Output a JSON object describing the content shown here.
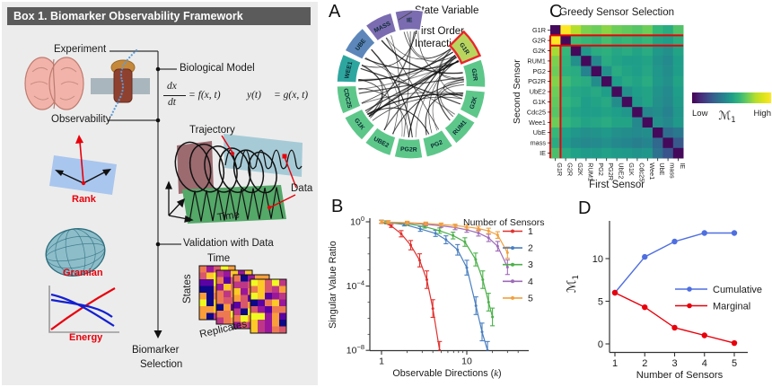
{
  "figure": {
    "background": "#ffffff",
    "text_color": "#1a1a1a",
    "accent_red": "#e8000b"
  },
  "left_box": {
    "title": "Box 1. Biomarker Observability Framework",
    "header_bg": "#5b5b5b",
    "box_bg": "#ececec",
    "labels": {
      "experiment": "Experiment",
      "biological_model": "Biological Model",
      "observability": "Observability",
      "rank": "Rank",
      "gramian": "Gramian",
      "energy": "Energy",
      "trajectory": "Trajectory",
      "data": "Data",
      "time_trajectory": "Time",
      "validation": "Validation with Data",
      "time_validation": "Time",
      "states": "States",
      "replicates": "Replicates",
      "biomarker_line1": "Biomarker",
      "biomarker_line2": "Selection"
    },
    "equations": {
      "numerator": "dx",
      "denominator": "dt",
      "ode_rhs": "= f(x, t)",
      "output": "y(t)",
      "output_rhs": "= g(x, t)"
    }
  },
  "chart_data": [
    {
      "id": "A",
      "type": "chord",
      "panel_label": "A",
      "annotation_lines": [
        "State Variable",
        "First Order",
        "Interactions"
      ],
      "highlight_color": "#e8272c",
      "segments": [
        {
          "name": "G1R",
          "color": "#b9d55e",
          "highlighted": true
        },
        {
          "name": "G2R",
          "color": "#5dc78a"
        },
        {
          "name": "G2K",
          "color": "#5dc78a"
        },
        {
          "name": "RUM1",
          "color": "#5dc78a"
        },
        {
          "name": "PG2",
          "color": "#5dc78a"
        },
        {
          "name": "PG2R",
          "color": "#5dc78a"
        },
        {
          "name": "UBE2",
          "color": "#5dc78a"
        },
        {
          "name": "G1K",
          "color": "#5dc78a"
        },
        {
          "name": "CDC25",
          "color": "#5dc78a"
        },
        {
          "name": "WEE1",
          "color": "#2ea6a0"
        },
        {
          "name": "UBE",
          "color": "#5d87bb"
        },
        {
          "name": "MASS",
          "color": "#7b6cb1"
        },
        {
          "name": "IE",
          "color": "#7b6cb1"
        }
      ]
    },
    {
      "id": "B",
      "type": "line",
      "panel_label": "B",
      "xlabel": "Observable Directions (k)",
      "ylabel": "Singular Value Ratio",
      "xscale": "log",
      "yscale": "log",
      "xlim": [
        1,
        50
      ],
      "ylim": [
        1e-08,
        1
      ],
      "xticks": [
        1,
        10
      ],
      "ytick_exponents": [
        0,
        -4,
        -8
      ],
      "legend_title": "Number of Sensors",
      "series": [
        {
          "name": "1",
          "color": "#e0312e",
          "x": [
            1,
            1.3,
            1.7,
            2.2,
            2.8,
            3.4,
            4,
            4.8
          ],
          "y": [
            1,
            0.55,
            0.18,
            0.035,
            0.004,
            0.00025,
            4e-06,
            1e-08
          ]
        },
        {
          "name": "2",
          "color": "#4a7fc1",
          "x": [
            1,
            1.15,
            1.85,
            2.85,
            4.3,
            5.7,
            7.8,
            10,
            12.8,
            15.1,
            17.5
          ],
          "y": [
            1,
            0.92,
            0.68,
            0.36,
            0.19,
            0.076,
            0.018,
            0.0014,
            6e-06,
            1.4e-07,
            1e-08
          ]
        },
        {
          "name": "3",
          "color": "#4cb04a",
          "x": [
            1,
            1.15,
            2,
            3.2,
            4.8,
            6.9,
            9.5,
            12.7,
            15.4,
            18,
            20
          ],
          "y": [
            1,
            0.93,
            0.75,
            0.5,
            0.28,
            0.14,
            0.055,
            0.0045,
            0.00025,
            1e-05,
            1.2e-06
          ]
        },
        {
          "name": "4",
          "color": "#9e6ab8",
          "x": [
            1,
            1.2,
            2,
            3.3,
            5,
            7.3,
            10,
            13.7,
            18,
            23,
            30
          ],
          "y": [
            1,
            0.94,
            0.84,
            0.7,
            0.56,
            0.44,
            0.32,
            0.2,
            0.1,
            0.03,
            0.0015
          ]
        },
        {
          "name": "5",
          "color": "#f2a03d",
          "x": [
            1,
            1.2,
            2,
            3.3,
            5,
            7.3,
            10,
            13.7,
            18,
            23,
            30
          ],
          "y": [
            1,
            0.95,
            0.88,
            0.78,
            0.68,
            0.58,
            0.48,
            0.38,
            0.27,
            0.15,
            0.012
          ]
        }
      ]
    },
    {
      "id": "C",
      "type": "heatmap",
      "panel_label": "C",
      "title": "Greedy Sensor Selection",
      "xlabel": "First Sensor",
      "ylabel": "Second Sensor",
      "labels": [
        "G1R",
        "G2R",
        "G2K",
        "RUM1",
        "PG2",
        "PG2R",
        "UbE2",
        "G1K",
        "Cdc25",
        "Wee1",
        "UbE",
        "mass",
        "IE"
      ],
      "matrix": [
        [
          0.02,
          1.0,
          0.8,
          0.72,
          0.7,
          0.74,
          0.7,
          0.68,
          0.66,
          0.7,
          0.6,
          0.55,
          0.65
        ],
        [
          1.0,
          0.02,
          0.62,
          0.6,
          0.58,
          0.63,
          0.58,
          0.6,
          0.57,
          0.6,
          0.52,
          0.5,
          0.56
        ],
        [
          0.78,
          0.6,
          0.02,
          0.48,
          0.55,
          0.57,
          0.53,
          0.55,
          0.52,
          0.55,
          0.48,
          0.45,
          0.52
        ],
        [
          0.72,
          0.58,
          0.45,
          0.02,
          0.42,
          0.55,
          0.52,
          0.5,
          0.5,
          0.52,
          0.46,
          0.43,
          0.5
        ],
        [
          0.7,
          0.57,
          0.55,
          0.4,
          0.02,
          0.45,
          0.55,
          0.52,
          0.5,
          0.53,
          0.47,
          0.44,
          0.5
        ],
        [
          0.73,
          0.62,
          0.57,
          0.55,
          0.44,
          0.02,
          0.5,
          0.54,
          0.52,
          0.55,
          0.48,
          0.45,
          0.52
        ],
        [
          0.7,
          0.57,
          0.53,
          0.52,
          0.54,
          0.5,
          0.02,
          0.45,
          0.5,
          0.52,
          0.46,
          0.43,
          0.5
        ],
        [
          0.68,
          0.59,
          0.55,
          0.5,
          0.52,
          0.54,
          0.44,
          0.02,
          0.48,
          0.52,
          0.45,
          0.42,
          0.49
        ],
        [
          0.66,
          0.56,
          0.52,
          0.5,
          0.5,
          0.52,
          0.5,
          0.47,
          0.02,
          0.42,
          0.44,
          0.4,
          0.47
        ],
        [
          0.7,
          0.59,
          0.55,
          0.52,
          0.53,
          0.55,
          0.52,
          0.52,
          0.42,
          0.02,
          0.45,
          0.42,
          0.48
        ],
        [
          0.6,
          0.51,
          0.47,
          0.45,
          0.46,
          0.48,
          0.45,
          0.44,
          0.43,
          0.44,
          0.02,
          0.32,
          0.36
        ],
        [
          0.55,
          0.49,
          0.44,
          0.42,
          0.43,
          0.45,
          0.42,
          0.41,
          0.39,
          0.41,
          0.3,
          0.02,
          0.25
        ],
        [
          0.64,
          0.55,
          0.51,
          0.49,
          0.49,
          0.51,
          0.49,
          0.48,
          0.46,
          0.47,
          0.34,
          0.24,
          0.02
        ]
      ],
      "colorbar": {
        "low_label": "Low",
        "high_label": "High",
        "symbol": "ℳ",
        "subscript": "1"
      },
      "highlight": {
        "row": "G2R",
        "row_index": 1,
        "col": "G1R",
        "col_index": 0,
        "color": "#e8000b"
      }
    },
    {
      "id": "D",
      "type": "line",
      "panel_label": "D",
      "xlabel": "Number of Sensors",
      "ylabel_symbol": "ℳ",
      "ylabel_subscript": "1",
      "x": [
        1,
        2,
        3,
        4,
        5
      ],
      "yticks": [
        0,
        5,
        10
      ],
      "ylim": [
        0,
        13.5
      ],
      "series": [
        {
          "name": "Cumulative",
          "color": "#4f6fe0",
          "values": [
            6,
            10.2,
            12,
            13,
            13
          ]
        },
        {
          "name": "Marginal",
          "color": "#e8000b",
          "values": [
            6,
            4.3,
            1.9,
            1.0,
            0.1
          ]
        }
      ]
    }
  ],
  "palettes": {
    "viridis": [
      "#440154",
      "#482878",
      "#3e4989",
      "#31688e",
      "#26828e",
      "#1f9e89",
      "#35b779",
      "#6dcd59",
      "#b4de2c",
      "#dce319",
      "#fde725"
    ],
    "plasma": [
      "#0d0887",
      "#5b02a3",
      "#9a179b",
      "#bd3786",
      "#d8576b",
      "#ed7953",
      "#fa9e3b",
      "#fdc926",
      "#f0f921"
    ]
  }
}
